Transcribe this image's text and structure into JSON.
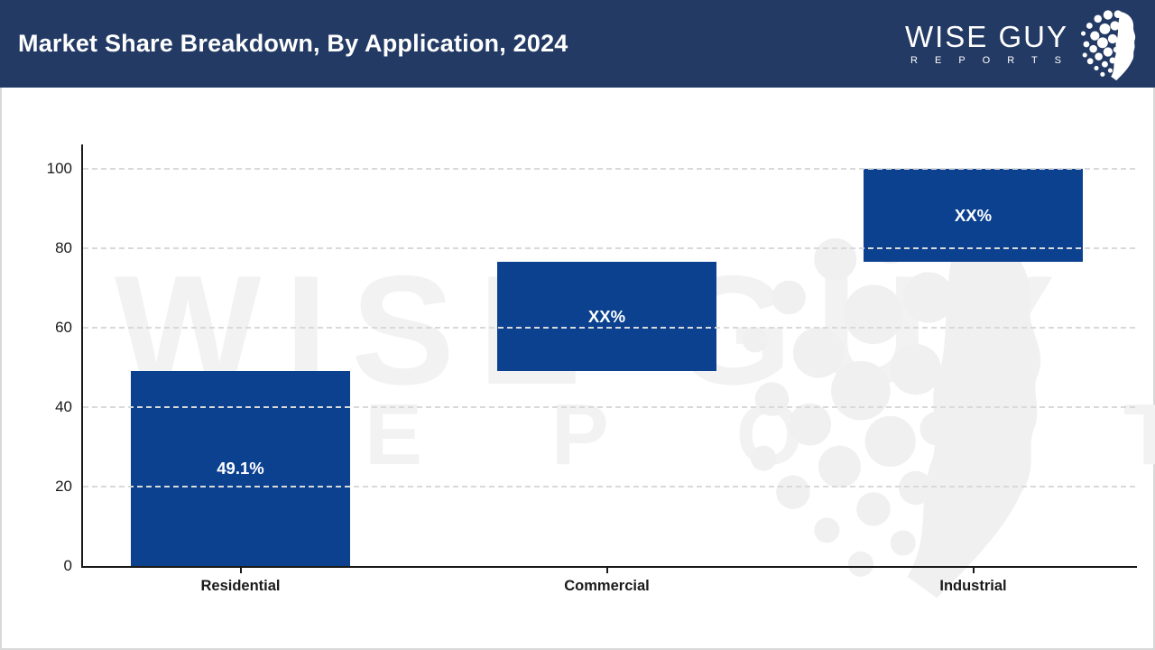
{
  "header": {
    "title": "Market Share Breakdown, By Application, 2024",
    "bg_color": "#233a64",
    "logo": {
      "line1": "WISE GUY",
      "line2": "R E P O R T S"
    }
  },
  "watermark": {
    "line1": "WISE GUY",
    "line2": "R E P O R T S"
  },
  "chart_data": {
    "type": "bar",
    "subtype": "waterfall-segments",
    "title": "Market Share Breakdown, By Application, 2024",
    "categories": [
      "Residential",
      "Commercial",
      "Industrial"
    ],
    "segments": [
      {
        "category": "Residential",
        "start": 0,
        "end": 49.1,
        "label": "49.1%"
      },
      {
        "category": "Commercial",
        "start": 49.1,
        "end": 76.5,
        "label": "XX%"
      },
      {
        "category": "Industrial",
        "start": 76.5,
        "end": 100,
        "label": "XX%"
      }
    ],
    "yticks": [
      0,
      20,
      40,
      60,
      80,
      100
    ],
    "ylim": [
      0,
      100
    ],
    "xlabel": "",
    "ylabel": "",
    "grid": "horizontal-dashed",
    "legend": "none",
    "bar_color": "#0b418f",
    "bar_label_color": "#ffffff",
    "axis_color": "#1a1a1a",
    "grid_color": "#d9d9d9"
  }
}
